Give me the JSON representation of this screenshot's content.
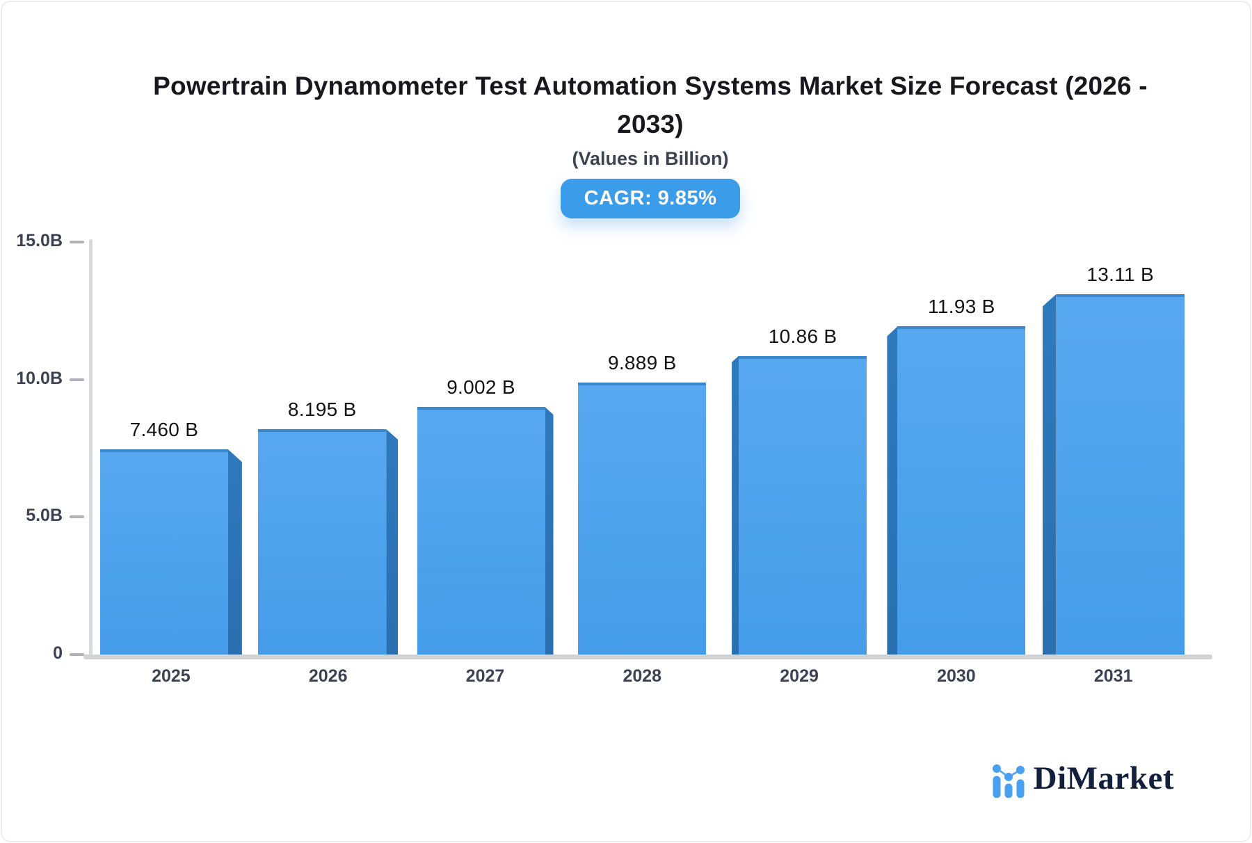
{
  "header": {
    "title_line1": "Powertrain Dynamometer Test Automation Systems Market Size Forecast (2026 -",
    "title_line2": "2033)",
    "subtitle": "(Values in Billion)",
    "cagr_label": "CAGR: 9.85%"
  },
  "chart_data": {
    "type": "bar",
    "categories": [
      "2025",
      "2026",
      "2027",
      "2028",
      "2029",
      "2030",
      "2031"
    ],
    "values": [
      7.46,
      8.195,
      9.002,
      9.889,
      10.86,
      11.93,
      13.11
    ],
    "value_labels": [
      "7.460 B",
      "8.195 B",
      "9.002 B",
      "9.889 B",
      "10.86 B",
      "11.93 B",
      "13.11 B"
    ],
    "title": "Powertrain Dynamometer Test Automation Systems Market Size Forecast (2026 - 2033)",
    "subtitle": "(Values in Billion)",
    "xlabel": "",
    "ylabel": "",
    "ylim": [
      0,
      15
    ],
    "yticks": [
      {
        "value": 0,
        "label": "0"
      },
      {
        "value": 5,
        "label": "5.0B"
      },
      {
        "value": 10,
        "label": "10.0B"
      },
      {
        "value": 15,
        "label": "15.0B"
      }
    ],
    "grid": false,
    "legend": null,
    "bar_style": "3d-extruded"
  },
  "colors": {
    "bar_face_top": "#57a8f0",
    "bar_face_bottom": "#459ce9",
    "bar_side": "#2e79bd",
    "badge_bg": "#3b9ce9",
    "axis_line": "#d8d9dd",
    "tick_text": "#3a4254",
    "title_text": "#17181d",
    "logo_navy": "#13203c",
    "logo_icon_blue": "#4aa0f0"
  },
  "branding": {
    "logo_text": "DiMarket"
  }
}
